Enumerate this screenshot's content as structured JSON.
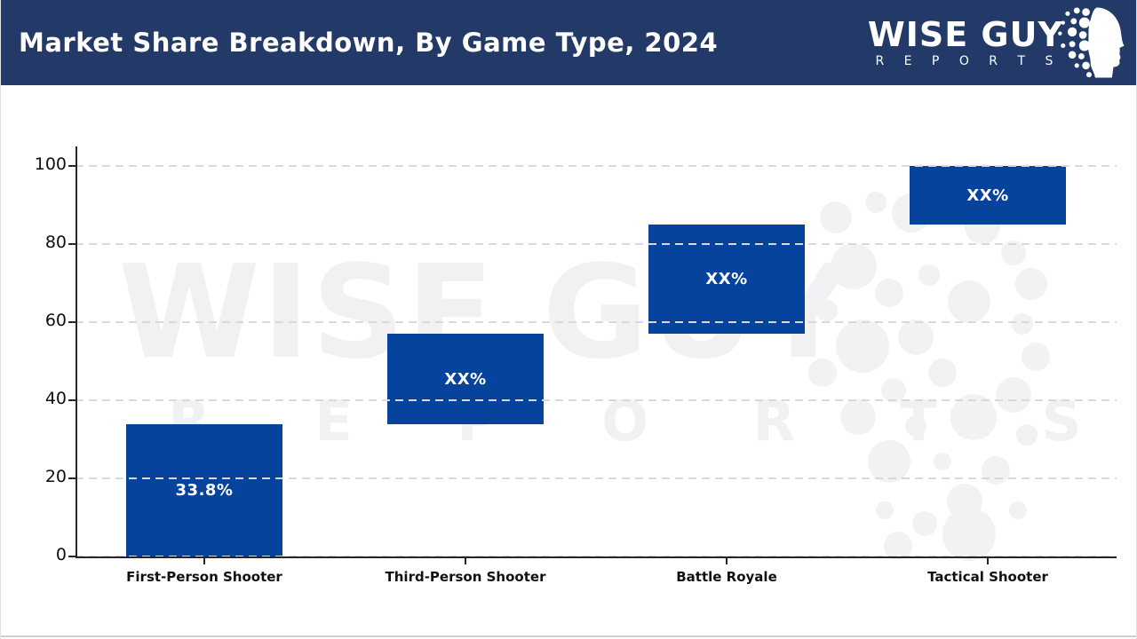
{
  "header": {
    "title": "Market Share Breakdown, By Game Type, 2024",
    "bg_color": "#233A68",
    "logo": {
      "line1": "WISE GUY",
      "line2": "R E P O R T S"
    }
  },
  "watermark": {
    "line1": "WISE GUY",
    "line2": "R E P O R T S"
  },
  "chart_data": {
    "type": "bar",
    "subtype": "waterfall",
    "title": "Market Share Breakdown, By Game Type, 2024",
    "categories": [
      "First-Person Shooter",
      "Third-Person Shooter",
      "Battle Royale",
      "Tactical Shooter"
    ],
    "segments": [
      {
        "start": 0,
        "end": 33.8,
        "label": "33.8%"
      },
      {
        "start": 33.8,
        "end": 57,
        "label": "XX%"
      },
      {
        "start": 57,
        "end": 85,
        "label": "XX%"
      },
      {
        "start": 85,
        "end": 100,
        "label": "XX%"
      }
    ],
    "yticks": [
      0,
      20,
      40,
      60,
      80,
      100
    ],
    "ylim": [
      0,
      105
    ],
    "xlabel": "",
    "ylabel": "",
    "bar_color": "#05439D",
    "grid": true,
    "grid_color": "#d9d9d9",
    "legend": "none"
  }
}
